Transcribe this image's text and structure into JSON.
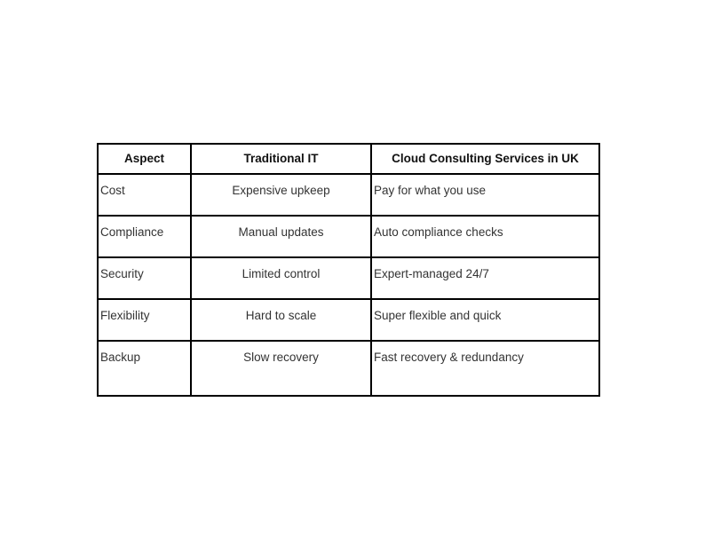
{
  "table": {
    "headers": [
      "Aspect",
      "Traditional IT",
      "Cloud Consulting Services in UK"
    ],
    "rows": [
      {
        "aspect": "Cost",
        "traditional": "Expensive upkeep",
        "cloud": "Pay for what you use"
      },
      {
        "aspect": "Compliance",
        "traditional": "Manual updates",
        "cloud": "Auto compliance checks"
      },
      {
        "aspect": "Security",
        "traditional": "Limited control",
        "cloud": "Expert-managed 24/7"
      },
      {
        "aspect": "Flexibility",
        "traditional": "Hard to scale",
        "cloud": "Super flexible and quick"
      },
      {
        "aspect": "Backup",
        "traditional": "Slow recovery",
        "cloud": "Fast recovery & redundancy"
      }
    ],
    "colors": {
      "border": "#000000",
      "header_text": "#111111",
      "body_text": "#333333",
      "background": "#ffffff"
    }
  }
}
